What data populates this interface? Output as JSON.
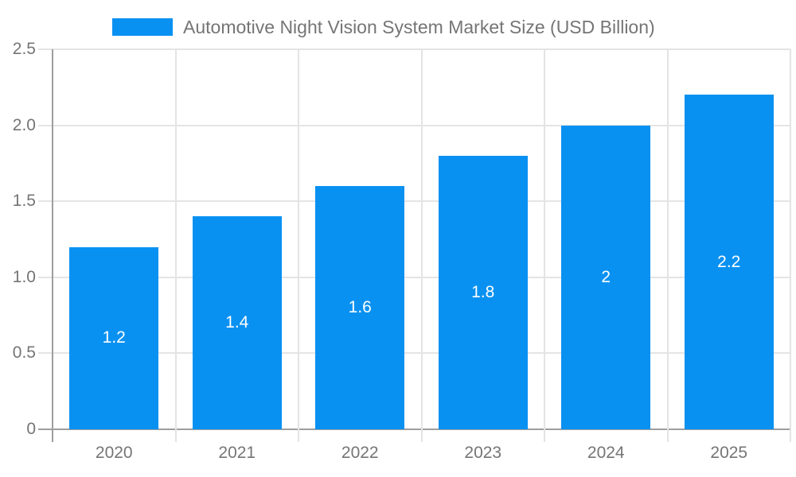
{
  "legend": {
    "label": "Automotive Night Vision System Market Size (USD Billion)"
  },
  "chart_data": {
    "type": "bar",
    "title": "Automotive Night Vision System Market Size (USD Billion)",
    "categories": [
      "2020",
      "2021",
      "2022",
      "2023",
      "2024",
      "2025"
    ],
    "values": [
      1.2,
      1.4,
      1.6,
      1.8,
      2,
      2.2
    ],
    "bar_labels": [
      "1.2",
      "1.4",
      "1.6",
      "1.8",
      "2",
      "2.2"
    ],
    "xlabel": "",
    "ylabel": "",
    "ylim": [
      0,
      2.5
    ],
    "yticks": [
      0,
      0.5,
      1,
      1.5,
      2,
      2.5
    ],
    "ytick_labels": [
      "0",
      "0.5",
      "1.0",
      "1.5",
      "2.0",
      "2.5"
    ],
    "grid": true,
    "legend_position": "top",
    "bar_label_position": "center-inside"
  },
  "colors": {
    "bar": "#0991F2",
    "axis_text": "#757575",
    "bar_label_text": "#ffffff",
    "gridline": "#e4e4e4",
    "axis_line": "#9e9e9e",
    "background": "#ffffff"
  }
}
